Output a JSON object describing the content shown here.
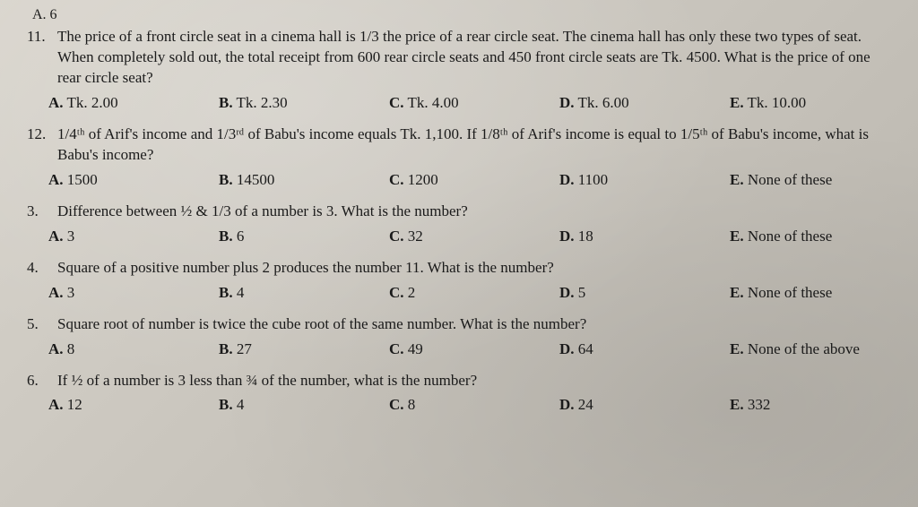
{
  "partial_top": "A. 6",
  "questions": [
    {
      "num": "11.",
      "text": "The price of a front circle seat in a cinema hall is 1/3 the price of a rear circle seat. The cinema hall has only these two types of seat. When completely sold out, the total receipt from 600 rear circle seats and 450 front circle seats are Tk. 4500. What is the price of one rear circle seat?",
      "options": [
        {
          "label": "A.",
          "text": "Tk. 2.00"
        },
        {
          "label": "B.",
          "text": "Tk. 2.30"
        },
        {
          "label": "C.",
          "text": "Tk. 4.00"
        },
        {
          "label": "D.",
          "text": "Tk. 6.00"
        },
        {
          "label": "E.",
          "text": "Tk. 10.00"
        }
      ]
    },
    {
      "num": "12.",
      "text": "1/4ᵗʰ of Arif's income and 1/3ʳᵈ of Babu's income equals Tk. 1,100. If 1/8ᵗʰ of Arif's income is equal to 1/5ᵗʰ of Babu's income, what is Babu's income?",
      "options": [
        {
          "label": "A.",
          "text": "1500"
        },
        {
          "label": "B.",
          "text": "14500"
        },
        {
          "label": "C.",
          "text": "1200"
        },
        {
          "label": "D.",
          "text": "1100"
        },
        {
          "label": "E.",
          "text": "None of these"
        }
      ]
    },
    {
      "num": "3.",
      "text": "Difference between ½ & 1/3 of a number is 3. What is the number?",
      "options": [
        {
          "label": "A.",
          "text": "3"
        },
        {
          "label": "B.",
          "text": "6"
        },
        {
          "label": "C.",
          "text": "32"
        },
        {
          "label": "D.",
          "text": "18"
        },
        {
          "label": "E.",
          "text": "None of these"
        }
      ]
    },
    {
      "num": "4.",
      "text": "Square of a positive number plus 2 produces the number 11. What is the number?",
      "options": [
        {
          "label": "A.",
          "text": "3"
        },
        {
          "label": "B.",
          "text": "4"
        },
        {
          "label": "C.",
          "text": "2"
        },
        {
          "label": "D.",
          "text": "5"
        },
        {
          "label": "E.",
          "text": "None of these"
        }
      ]
    },
    {
      "num": "5.",
      "text": "Square root of number is twice the cube root of the same number. What is the number?",
      "options": [
        {
          "label": "A.",
          "text": "8"
        },
        {
          "label": "B.",
          "text": "27"
        },
        {
          "label": "C.",
          "text": "49"
        },
        {
          "label": "D.",
          "text": "64"
        },
        {
          "label": "E.",
          "text": "None of the above"
        }
      ]
    },
    {
      "num": "6.",
      "text": "If ½ of a number is 3 less than ¾ of the number, what is the number?",
      "options": [
        {
          "label": "A.",
          "text": "12"
        },
        {
          "label": "B.",
          "text": "4"
        },
        {
          "label": "C.",
          "text": "8"
        },
        {
          "label": "D.",
          "text": "24"
        },
        {
          "label": "E.",
          "text": "332"
        }
      ]
    }
  ]
}
